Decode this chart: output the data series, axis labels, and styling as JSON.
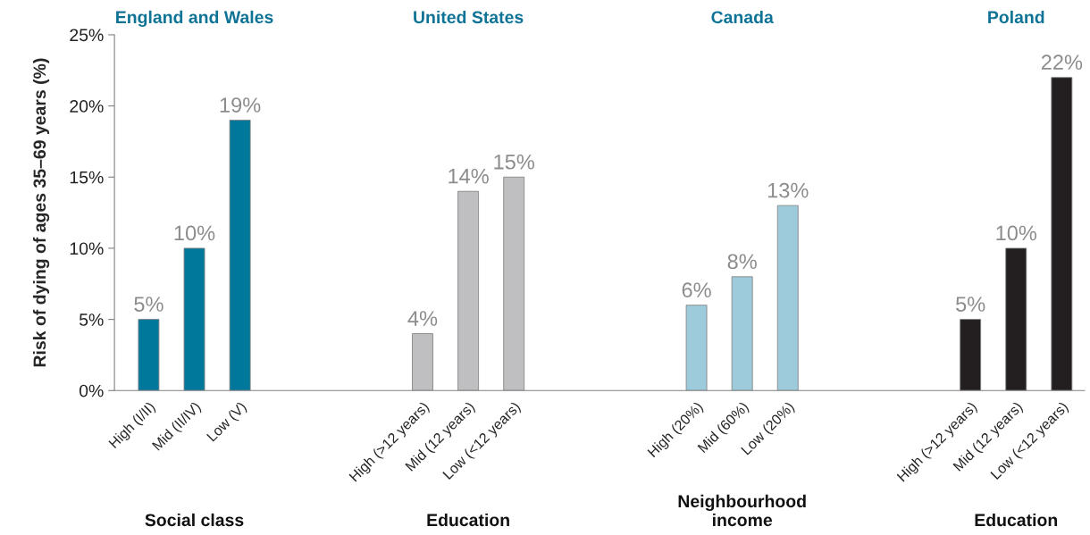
{
  "chart_data": {
    "type": "bar",
    "ylabel": "Risk of dying of ages 35–69 years (%)",
    "categories": [
      "High (I/II)",
      "Mid (II/IV)",
      "Low (V)",
      null,
      null,
      null,
      "High (>12 years)",
      "Mid (12 years)",
      "Low (<12 years)",
      null,
      null,
      null,
      "High (20%)",
      "Mid (60%)",
      "Low (20%)",
      null,
      null,
      null,
      "High (>12 years)",
      "Mid (12 years)",
      "Low (<12 years)"
    ],
    "values": [
      5,
      10,
      19,
      null,
      null,
      null,
      4,
      14,
      15,
      null,
      null,
      null,
      6,
      8,
      13,
      null,
      null,
      null,
      5,
      10,
      22
    ],
    "colors": [
      "#00789c",
      "#00789c",
      "#00789c",
      null,
      null,
      null,
      "#bfbfc1",
      "#bfbfc1",
      "#bfbfc1",
      null,
      null,
      null,
      "#9ecbdc",
      "#9ecbdc",
      "#9ecbdc",
      null,
      null,
      null,
      "#231f20",
      "#231f20",
      "#231f20"
    ],
    "value_labels": [
      "5%",
      "10%",
      "19%",
      null,
      null,
      null,
      "4%",
      "14%",
      "15%",
      null,
      null,
      null,
      "6%",
      "8%",
      "13%",
      null,
      null,
      null,
      "5%",
      "10%",
      "22%"
    ],
    "ylim": [
      0,
      25
    ],
    "yticks": [
      {
        "value": 0,
        "label": "0%"
      },
      {
        "value": 5,
        "label": "5%"
      },
      {
        "value": 10,
        "label": "10%"
      },
      {
        "value": 15,
        "label": "15%"
      },
      {
        "value": 20,
        "label": "20%"
      },
      {
        "value": 25,
        "label": "25%"
      }
    ],
    "annotations": [
      "England and Wales",
      "United States",
      "Canada",
      "Poland",
      "Social class",
      "Education",
      "Neighbourhood\nincome",
      "Education"
    ],
    "grid": false,
    "legend": false
  }
}
